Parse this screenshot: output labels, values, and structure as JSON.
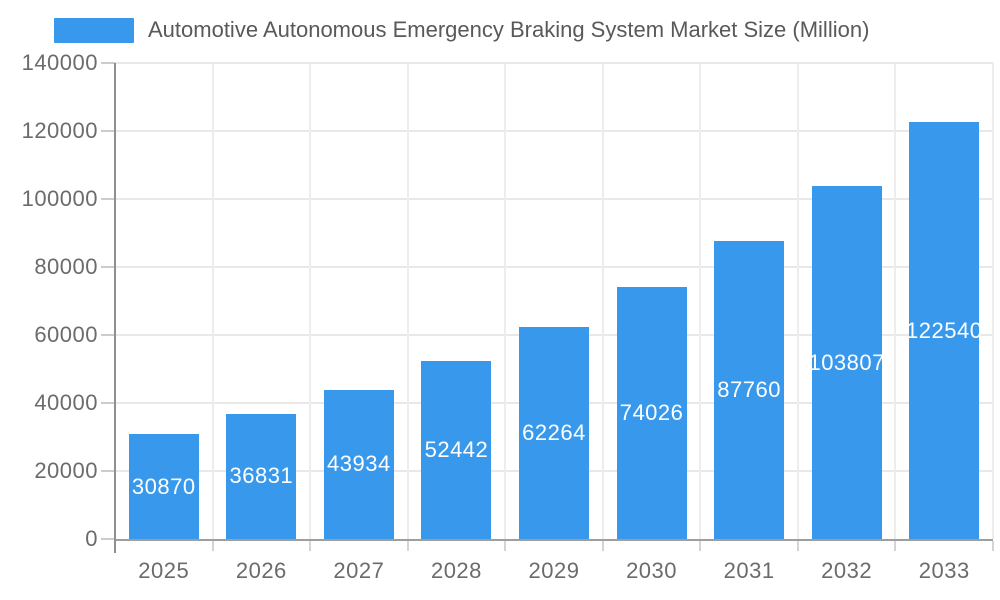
{
  "page": {
    "background": "#ffffff"
  },
  "legend": {
    "label": "Automotive Autonomous Emergency Braking System Market Size (Million)",
    "swatch_color": "#3899EC"
  },
  "chart_data": {
    "type": "bar",
    "title": "Automotive Autonomous Emergency Braking System Market Size (Million)",
    "categories": [
      "2025",
      "2026",
      "2027",
      "2028",
      "2029",
      "2030",
      "2031",
      "2032",
      "2033"
    ],
    "values": [
      30870,
      36831,
      43934,
      52442,
      62264,
      74026,
      87760,
      103807,
      122540
    ],
    "xlabel": "",
    "ylabel": "",
    "ylim": [
      0,
      140000
    ],
    "ytick_interval": 20000,
    "ytick_labels": [
      "0",
      "20000",
      "40000",
      "60000",
      "80000",
      "100000",
      "120000",
      "140000"
    ],
    "grid": true,
    "legend_position": "top-left",
    "bar_color": "#3899EC",
    "value_label_color": "#ffffff",
    "axis_label_color": "#6b6b6b",
    "title_color": "#595959",
    "grid_color_h": "#e8e8e8",
    "grid_color_v": "#ededed",
    "axis_line_color": "#9e9e9e",
    "tick_color": "#cccccc"
  }
}
